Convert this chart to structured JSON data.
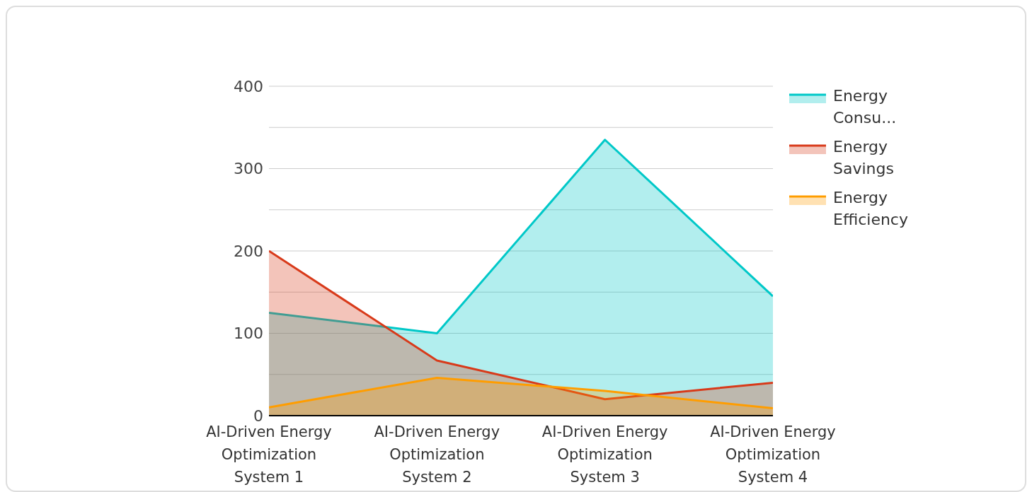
{
  "chart_data": {
    "type": "area",
    "categories": [
      "AI-Driven Energy Optimization System 1",
      "AI-Driven Energy Optimization System 2",
      "AI-Driven Energy Optimization System 3",
      "AI-Driven Energy Optimization System 4"
    ],
    "series": [
      {
        "name": "Energy Consu...",
        "color": "#00c8c8",
        "values": [
          125,
          100,
          335,
          145
        ]
      },
      {
        "name": "Energy Savings",
        "color": "#d83a1a",
        "values": [
          200,
          67,
          20,
          40
        ]
      },
      {
        "name": "Energy Efficiency",
        "color": "#ff9d00",
        "values": [
          10,
          46,
          30,
          9
        ]
      }
    ],
    "ylim": [
      0,
      400
    ],
    "yticks": [
      0,
      {
        "value": 50,
        "label": null
      },
      100,
      {
        "value": 150,
        "label": null
      },
      200,
      {
        "value": 250,
        "label": null
      },
      300,
      {
        "value": 350,
        "label": null
      },
      400
    ],
    "grid": "y",
    "legend": "right"
  }
}
